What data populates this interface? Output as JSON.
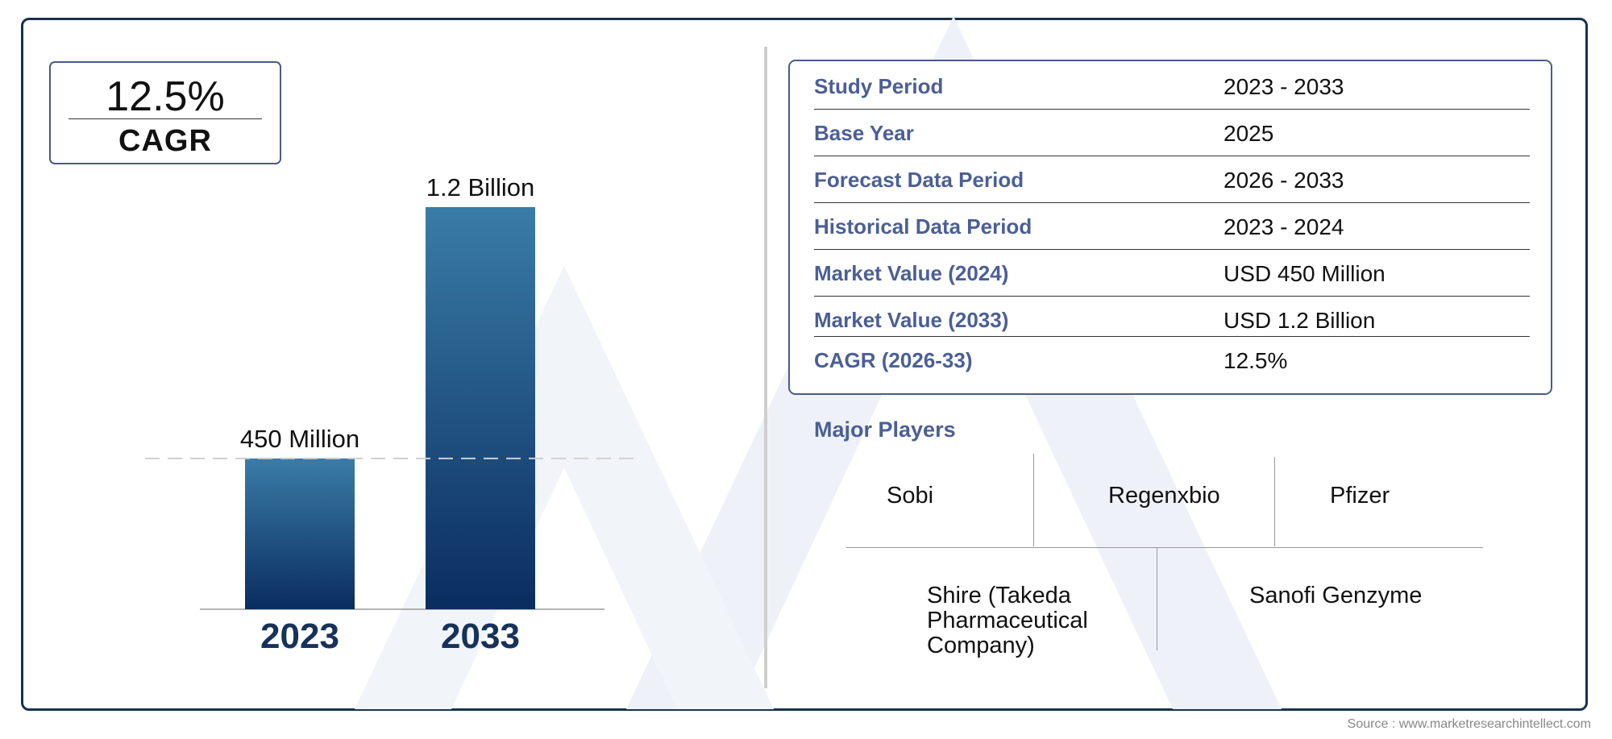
{
  "cagr_box": {
    "value": "12.5%",
    "label": "CAGR"
  },
  "chart_data": {
    "type": "bar",
    "categories": [
      "2023",
      "2033"
    ],
    "values": [
      0.45,
      1.2
    ],
    "units": "USD Billion",
    "data_labels": [
      "450 Million",
      "1.2 Billion"
    ],
    "ylim": [
      0,
      1.2
    ],
    "bar_color_top": "#3a7ca8",
    "bar_color_bottom": "#0a2d5e",
    "category_label_color": "#17325a"
  },
  "summary": [
    {
      "key": "Study Period",
      "value": "2023 - 2033"
    },
    {
      "key": "Base Year",
      "value": "2025"
    },
    {
      "key": "Forecast Data Period",
      "value": "2026 - 2033"
    },
    {
      "key": "Historical Data Period",
      "value": "2023 - 2024"
    },
    {
      "key": "Market Value (2024)",
      "value": "USD 450 Million"
    },
    {
      "key": "Market Value (2033)",
      "value": "USD 1.2 Billion"
    },
    {
      "key": "CAGR (2026-33)",
      "value": "12.5%"
    }
  ],
  "players": {
    "title": "Major Players",
    "items": [
      "Sobi",
      "Regenxbio",
      "Pfizer",
      "Shire (Takeda Pharmaceutical Company)",
      "Sanofi Genzyme"
    ]
  },
  "source": "Source : www.marketresearchintellect.com",
  "colors": {
    "frame": "#17324d",
    "accent": "#4b5f96"
  }
}
